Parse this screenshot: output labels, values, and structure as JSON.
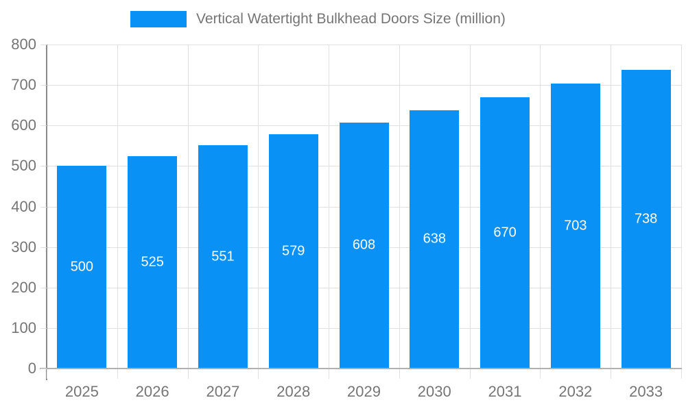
{
  "chart_data": {
    "type": "bar",
    "title": "Vertical Watertight Bulkhead Doors Size (million)",
    "legend": {
      "label": "Vertical Watertight Bulkhead Doors Size (million)",
      "position": "top-center"
    },
    "categories": [
      "2025",
      "2026",
      "2027",
      "2028",
      "2029",
      "2030",
      "2031",
      "2032",
      "2033"
    ],
    "series": [
      {
        "name": "Vertical Watertight Bulkhead Doors Size (million)",
        "values": [
          500,
          525,
          551,
          579,
          608,
          638,
          670,
          703,
          738
        ]
      }
    ],
    "value_labels_visible": true,
    "value_label_position": "inside-center",
    "xlabel": "",
    "ylabel": "",
    "ylim": [
      0,
      800
    ],
    "ytick_step": 100,
    "yticks": [
      0,
      100,
      200,
      300,
      400,
      500,
      600,
      700,
      800
    ],
    "grid": "both",
    "colors": {
      "bar": "#0991F5",
      "axis_text": "#757575",
      "legend_text": "#757575",
      "value_text": "#FFFFFF",
      "gridline": "#E0E0E0",
      "background": "#FFFFFF"
    }
  }
}
